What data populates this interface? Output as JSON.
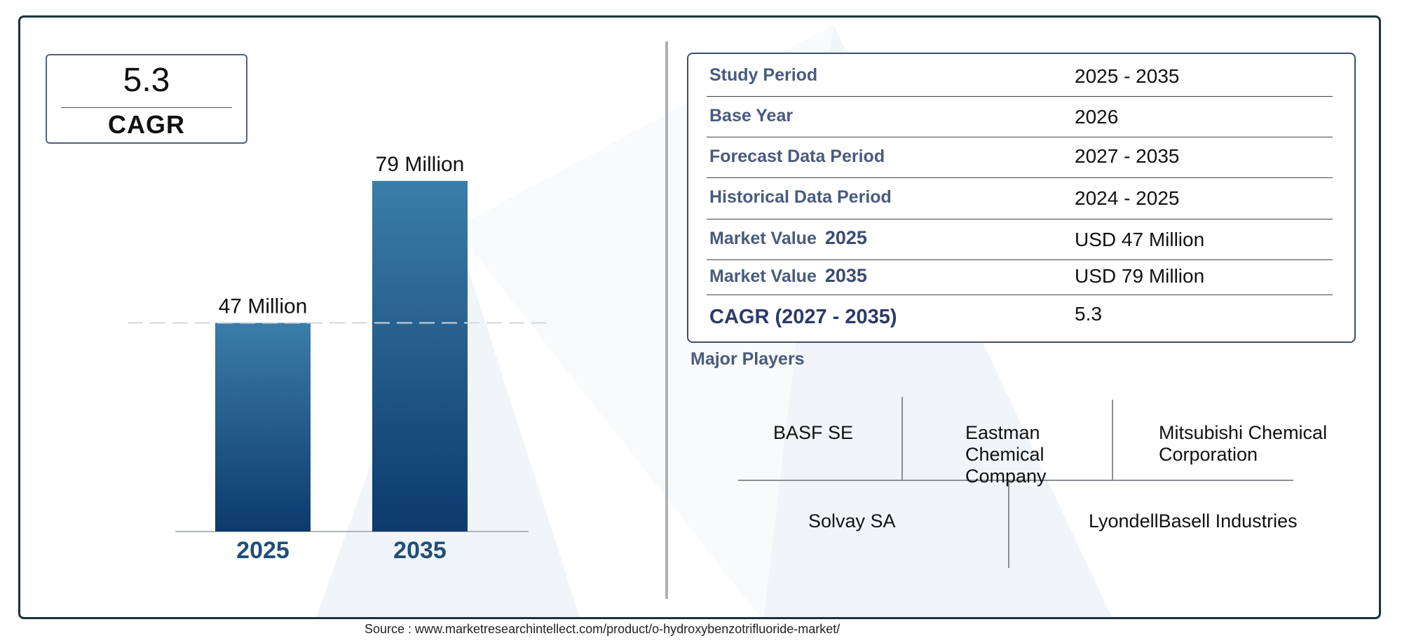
{
  "cagr_box": {
    "value": "5.3",
    "label": "CAGR"
  },
  "chart_data": {
    "type": "bar",
    "categories": [
      "2025",
      "2035"
    ],
    "values": [
      47,
      79
    ],
    "data_labels": [
      "47 Million",
      "79 Million"
    ],
    "ylim": [
      0,
      79
    ],
    "reference_line": 47,
    "colors": {
      "bar_top": "#3b7da8",
      "bar_bottom": "#0c3a6d",
      "tick": "#1f4f7a"
    }
  },
  "info_table": {
    "rows": [
      {
        "label": "Study Period",
        "value": "2025 - 2035"
      },
      {
        "label": "Base Year",
        "value": "2026"
      },
      {
        "label": "Forecast Data Period",
        "value": "2027 - 2035"
      },
      {
        "label": "Historical Data Period",
        "value": "2024 - 2025"
      },
      {
        "label": "Market Value",
        "year": "2025",
        "value": "USD 47 Million"
      },
      {
        "label": "Market Value",
        "year": "2035",
        "value": "USD 79 Million"
      },
      {
        "label": "CAGR (2027 - 2035)",
        "value": "5.3"
      }
    ]
  },
  "players": {
    "title": "Major Players",
    "items": [
      "BASF SE",
      "Eastman Chemical Company",
      "Mitsubishi Chemical Corporation",
      "Solvay SA",
      "LyondellBasell Industries"
    ]
  },
  "source": "Source : www.marketresearchintellect.com/product/o-hydroxybenzotrifluoride-market/"
}
